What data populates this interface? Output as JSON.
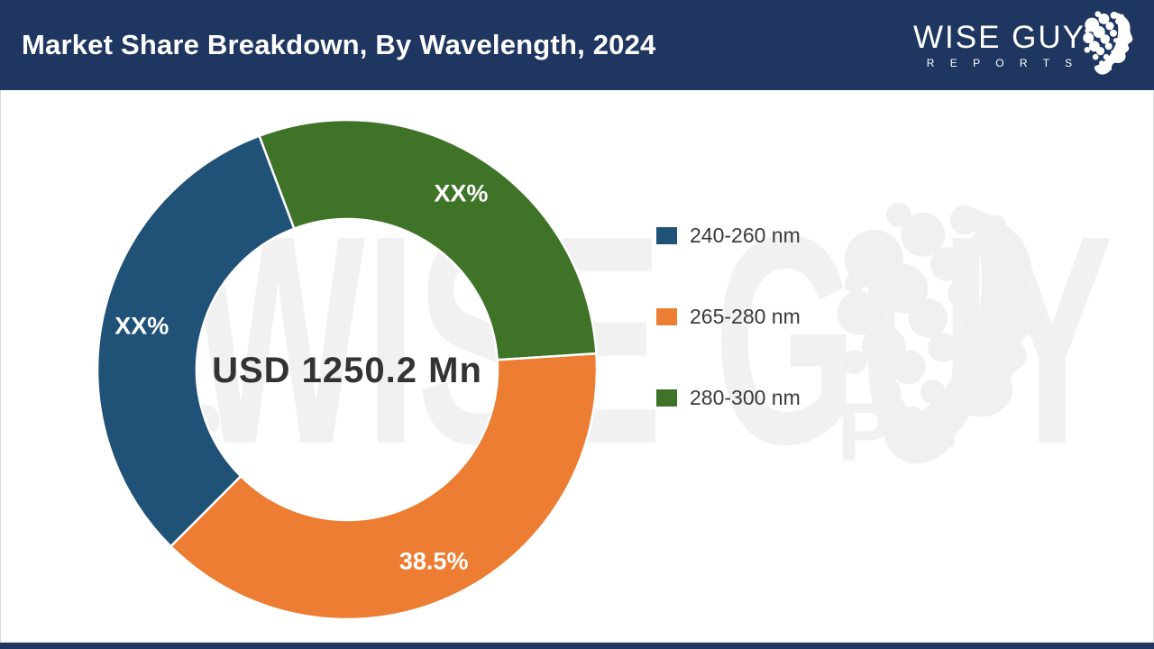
{
  "colors": {
    "header_bg": "#1f3760",
    "footer_bg": "#1f3760",
    "panel_border": "#d9d9d9",
    "watermark": "#f1f1f2",
    "center_text": "#333333",
    "legend_text": "#3a3a3a",
    "slice_label_text": "#ffffff",
    "blue": "#205278",
    "orange": "#ec7d32",
    "green": "#3f7428"
  },
  "header": {
    "title": "Market Share Breakdown, By Wavelength, 2024",
    "logo": {
      "name": "WISE GUY",
      "sub": "R E P O R T S"
    }
  },
  "chart_data": {
    "type": "pie",
    "subtype": "donut",
    "title": "Market Share Breakdown, By Wavelength, 2024",
    "center_label": "USD 1250.2 Mn",
    "units": "percent",
    "start_angle_deg": -20.6,
    "legend_position": "right",
    "segments": [
      {
        "label": "280-300 nm",
        "value": 29.7,
        "display_label": "XX%",
        "color": "#3f7428"
      },
      {
        "label": "265-280 nm",
        "value": 38.5,
        "display_label": "38.5%",
        "color": "#ec7d32"
      },
      {
        "label": "240-260 nm",
        "value": 31.8,
        "display_label": "XX%",
        "color": "#205278"
      }
    ]
  },
  "legend": {
    "items": [
      {
        "label": "240-260 nm",
        "color": "#205278"
      },
      {
        "label": "265-280 nm",
        "color": "#ec7d32"
      },
      {
        "label": "280-300 nm",
        "color": "#3f7428"
      }
    ]
  },
  "watermark": {
    "line1": "WISE GUY",
    "line2": "R E P O R T S"
  }
}
